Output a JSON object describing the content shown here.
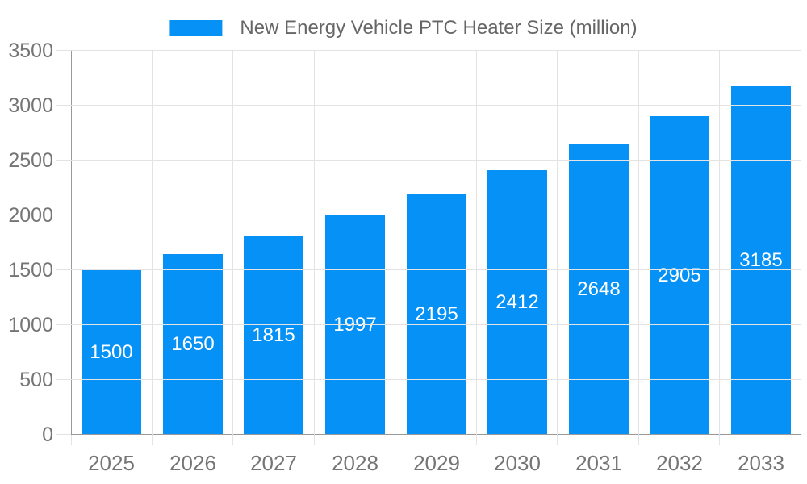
{
  "legend": {
    "position": "top-center",
    "items": [
      {
        "label": "New Energy Vehicle PTC Heater Size (million)",
        "color": "#0591F5"
      }
    ]
  },
  "colors": {
    "bar": "#0591F5",
    "bar_value_label": "#FFFFFF",
    "legend_text": "#666666",
    "axis_text": "#757575",
    "grid_line": "#E3E3E3",
    "axis_line": "#999999",
    "background": "#FFFFFF"
  },
  "chart_data": {
    "type": "bar",
    "title": "New Energy Vehicle PTC Heater Size (million)",
    "series_name": "New Energy Vehicle PTC Heater Size (million)",
    "categories": [
      "2025",
      "2026",
      "2027",
      "2028",
      "2029",
      "2030",
      "2031",
      "2032",
      "2033"
    ],
    "values": [
      1500,
      1650,
      1815,
      1997,
      2195,
      2412,
      2648,
      2905,
      3185
    ],
    "xlabel": "",
    "ylabel": "",
    "ylim": [
      0,
      3500
    ],
    "yticks": [
      0,
      500,
      1000,
      1500,
      2000,
      2500,
      3000,
      3500
    ],
    "grid": true,
    "vertical_grid": true,
    "legend_position": "top",
    "value_label_position": "inside-center",
    "bar_color": "#0591F5",
    "value_label_color": "#FFFFFF"
  }
}
